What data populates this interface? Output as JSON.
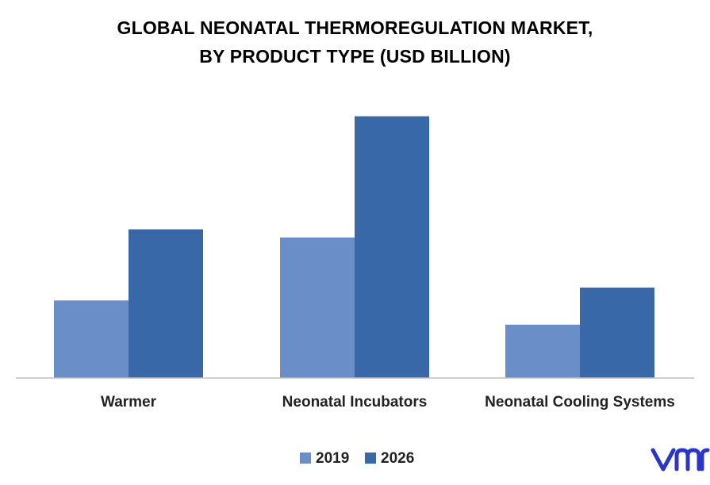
{
  "chart_data": {
    "type": "bar",
    "title_lines": [
      "GLOBAL NEONATAL THERMOREGULATION MARKET,",
      "BY PRODUCT TYPE (USD BILLION)"
    ],
    "categories": [
      "Warmer",
      "Neonatal Incubators",
      "Neonatal Cooling Systems"
    ],
    "series": [
      {
        "name": "2019",
        "values": [
          0.96,
          1.74,
          0.66
        ],
        "color": "#6a8fc8"
      },
      {
        "name": "2026",
        "values": [
          1.84,
          3.24,
          1.12
        ],
        "color": "#3868a8"
      }
    ],
    "ylim": [
      0,
      3.6
    ],
    "grid": false,
    "legend_position": "bottom-center"
  },
  "branding": {
    "logo_text": "vmr",
    "logo_color": "#2b35c8"
  }
}
